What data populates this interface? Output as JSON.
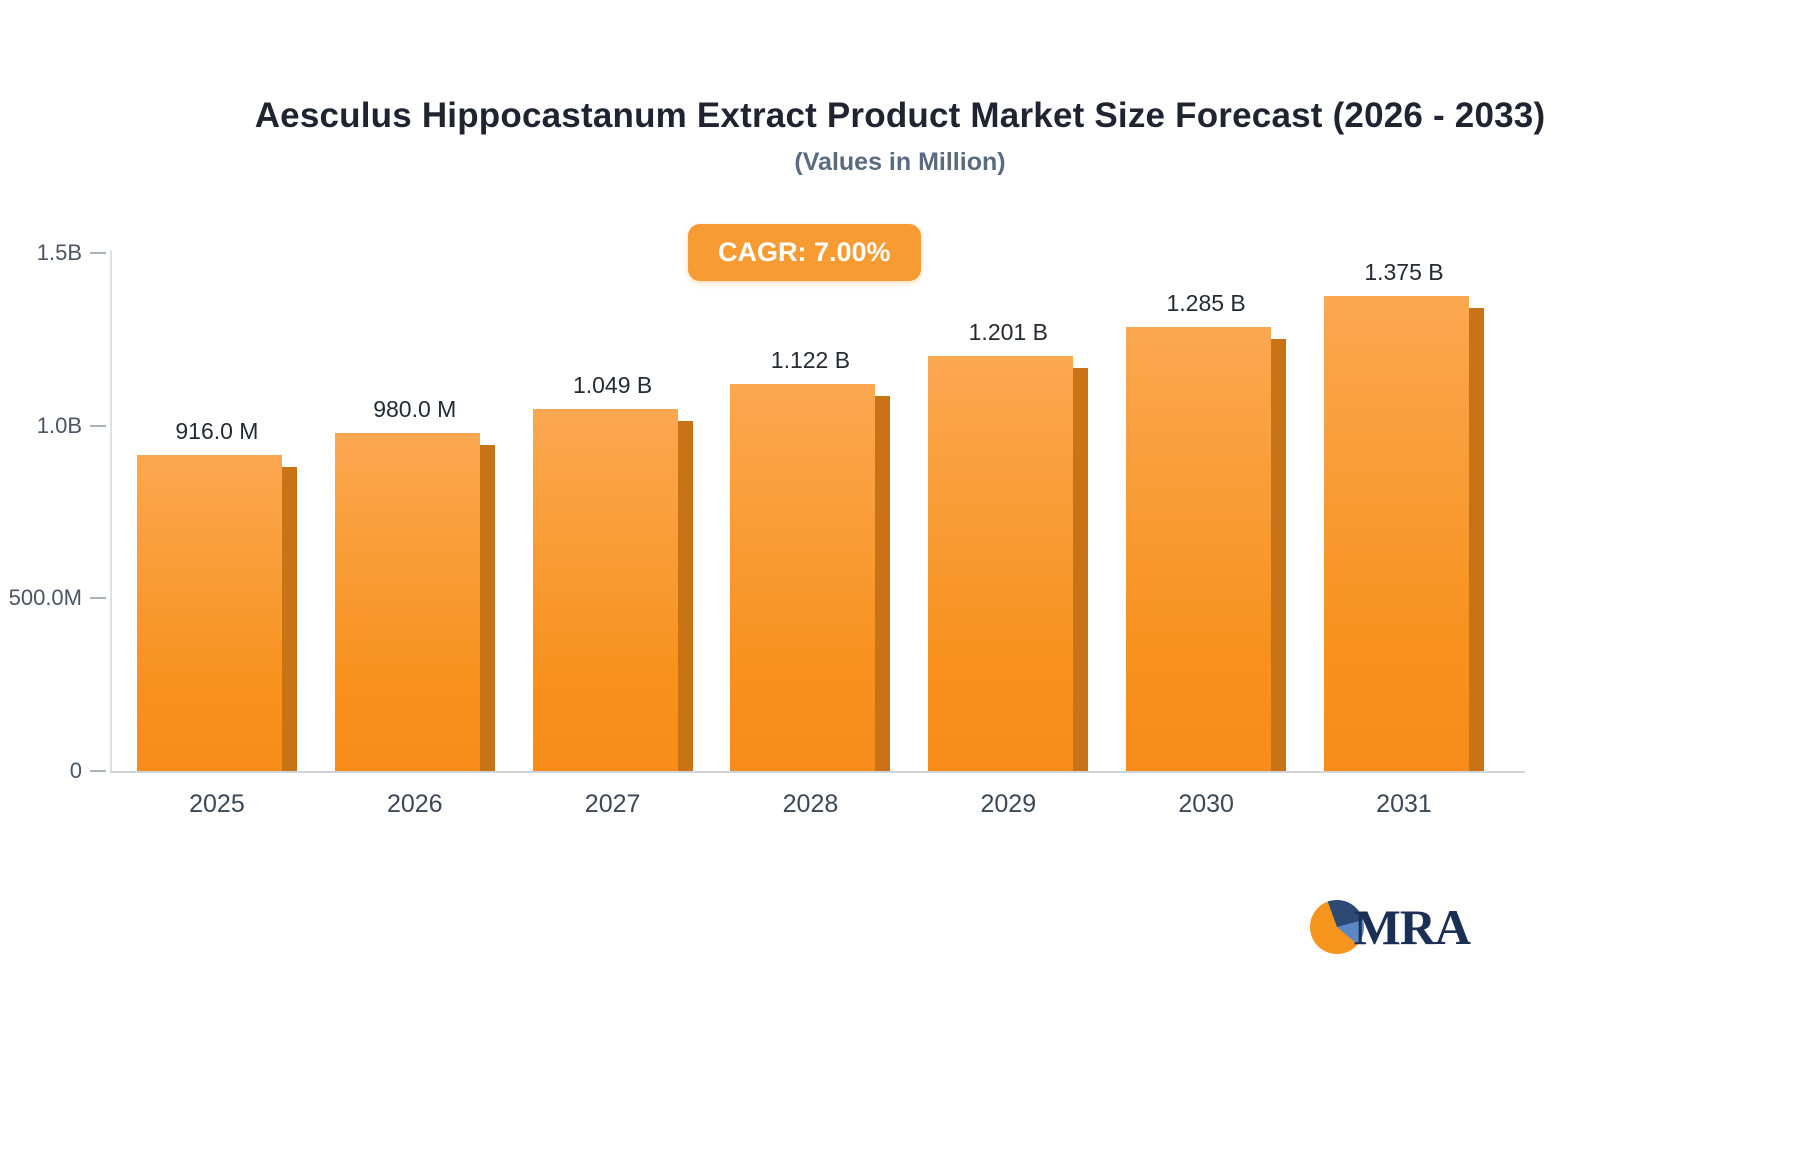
{
  "header": {
    "title": "Aesculus Hippocastanum Extract Product Market Size Forecast (2026 - 2033)",
    "subtitle": "(Values in Million)",
    "cagr_badge": "CAGR: 7.00%"
  },
  "chart_data": {
    "type": "bar",
    "title": "Aesculus Hippocastanum Extract Product Market Size Forecast (2026 - 2033)",
    "subtitle": "(Values in Million)",
    "unit": "Million",
    "cagr": "7.00%",
    "categories": [
      "2025",
      "2026",
      "2027",
      "2028",
      "2029",
      "2030",
      "2031"
    ],
    "values": [
      916,
      980,
      1049,
      1122,
      1201,
      1285,
      1375
    ],
    "labels": [
      "916.0 M",
      "980.0 M",
      "1.049 B",
      "1.122 B",
      "1.201 B",
      "1.285 B",
      "1.375 B"
    ],
    "yticks": [
      {
        "value": 0,
        "label": "0"
      },
      {
        "value": 500,
        "label": "500.0M"
      },
      {
        "value": 1000,
        "label": "1.0B"
      },
      {
        "value": 1500,
        "label": "1.5B"
      }
    ],
    "ylim": [
      0,
      1500
    ],
    "xlabel": "",
    "ylabel": "",
    "grid": false,
    "legend": false,
    "bar_color": "#f7941e",
    "bar_color_light": "#fba851",
    "bar_side_color": "#c97317",
    "badge_color": "#f89b33"
  },
  "logo": {
    "text": "MRA"
  }
}
